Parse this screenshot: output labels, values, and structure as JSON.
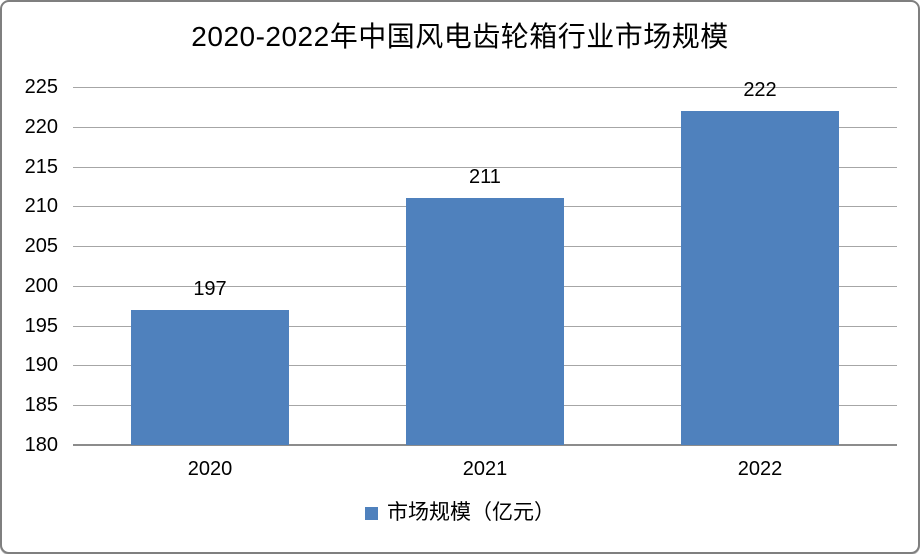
{
  "chart_data": {
    "type": "bar",
    "title": "2020-2022年中国风电齿轮箱行业市场规模",
    "categories": [
      "2020",
      "2021",
      "2022"
    ],
    "series": [
      {
        "name": "市场规模（亿元）",
        "color": "#4F81BD",
        "values": [
          197,
          211,
          222
        ]
      }
    ],
    "data_labels": [
      "197",
      "211",
      "222"
    ],
    "ytick_labels": [
      "180",
      "185",
      "190",
      "195",
      "200",
      "205",
      "210",
      "215",
      "220",
      "225"
    ],
    "ylim": [
      180,
      225
    ],
    "ytick_step": 5,
    "xlabel": "",
    "ylabel": "",
    "grid": true,
    "legend_position": "bottom"
  },
  "legend": {
    "label": "市场规模（亿元）",
    "marker_color": "#4F81BD"
  },
  "colors": {
    "bar": "#4F81BD",
    "gridline": "#A6A6A6",
    "axis_line": "#8C8C8C",
    "frame_border": "#7F7F7F",
    "text": "#000000",
    "background": "#FFFFFF"
  }
}
